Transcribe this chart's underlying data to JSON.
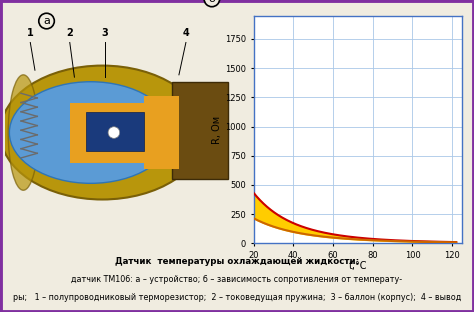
{
  "title_a": "а",
  "title_b": "б",
  "ylabel": "R, Ом",
  "xlabel": "t,°C",
  "x_ticks": [
    20,
    40,
    60,
    80,
    100,
    120
  ],
  "y_ticks": [
    0,
    250,
    500,
    750,
    1000,
    1250,
    1500,
    1750
  ],
  "xlim": [
    20,
    125
  ],
  "ylim": [
    0,
    1950
  ],
  "curve_color_upper": "#cc0000",
  "curve_color_lower": "#cc6600",
  "fill_color": "#ffcc00",
  "fill_alpha": 1.0,
  "background_color": "#f0ece0",
  "grid_color": "#aac8e8",
  "border_color": "#8030a0",
  "chart_border_color": "#4472c4",
  "caption_line1": "Датчик  температуры охлаждающей жидкости:",
  "caption_line2": "датчик ТМ106: а – устройство; б – зависимость сопротивления от температу-",
  "caption_line3": "ры;   1 – полупроводниковый терморезистор;  2 – токоведущая пружина;  3 – баллон (корпус);  4 – вывод"
}
